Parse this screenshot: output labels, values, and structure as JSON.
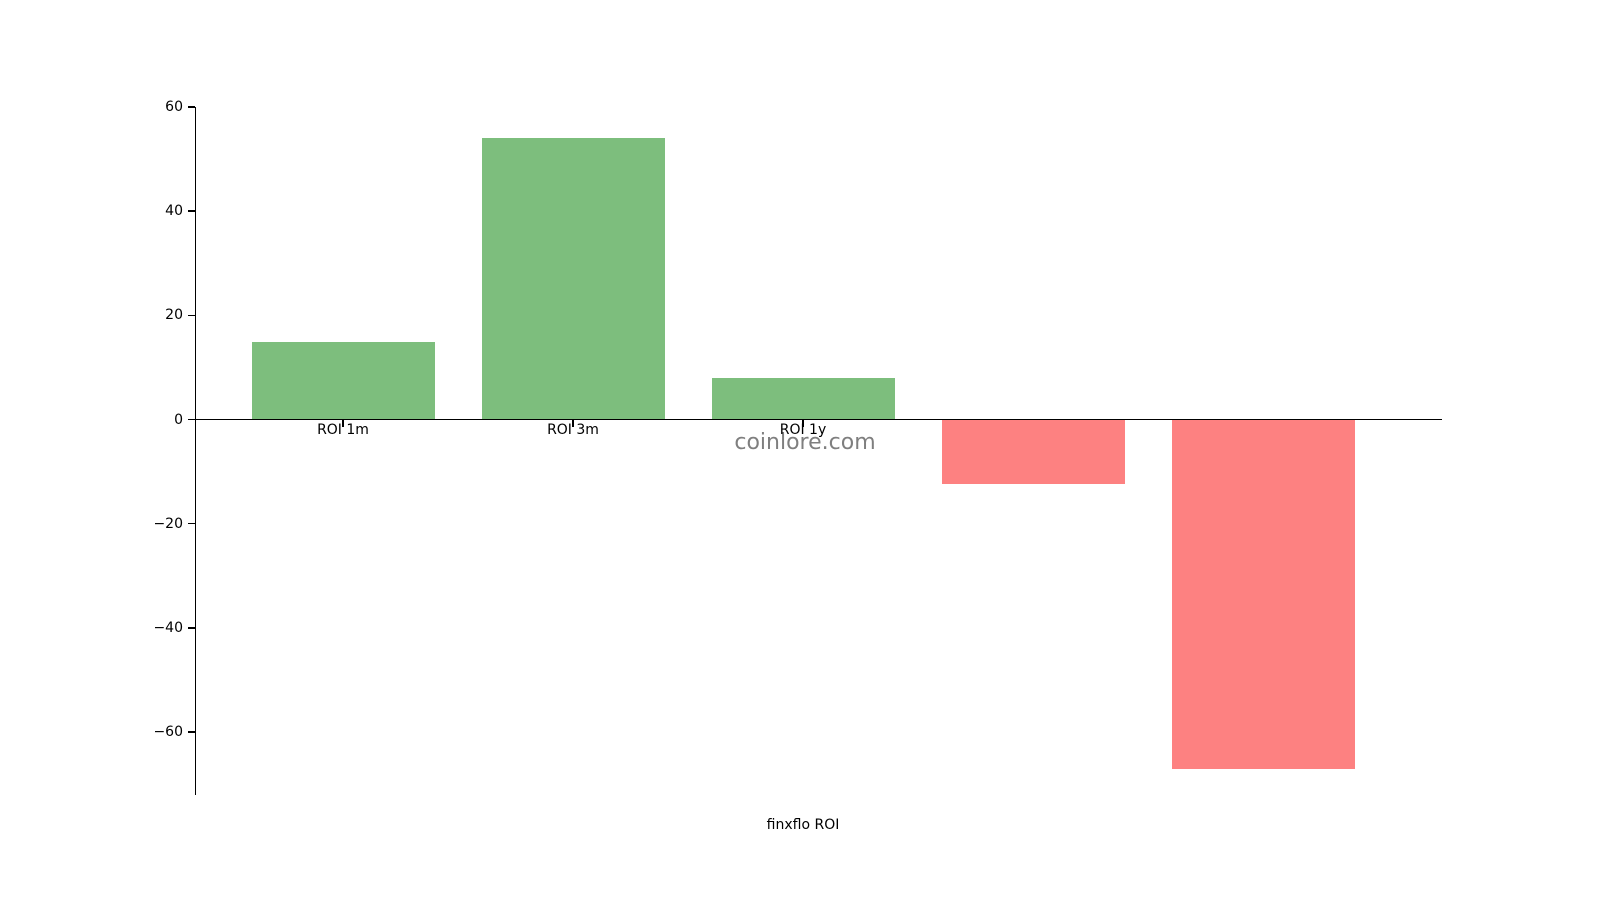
{
  "watermark": "coinlore.com",
  "chart_data": {
    "type": "bar",
    "title": "",
    "xlabel": "finxflo ROI",
    "ylabel": "",
    "categories": [
      "ROI 1m",
      "ROI 3m",
      "ROI 1y",
      "",
      ""
    ],
    "values": [
      14.9,
      54.1,
      8.0,
      -12.3,
      -67.0
    ],
    "yticks": [
      60,
      40,
      20,
      0,
      -20,
      -40,
      -60
    ],
    "ylim": [
      -72,
      60
    ],
    "grid": false,
    "legend": false,
    "positive_color": "#7dbe7d",
    "negative_color": "#fd8181",
    "axis_color": "#000000",
    "watermark_color": "#7f7f7f"
  }
}
